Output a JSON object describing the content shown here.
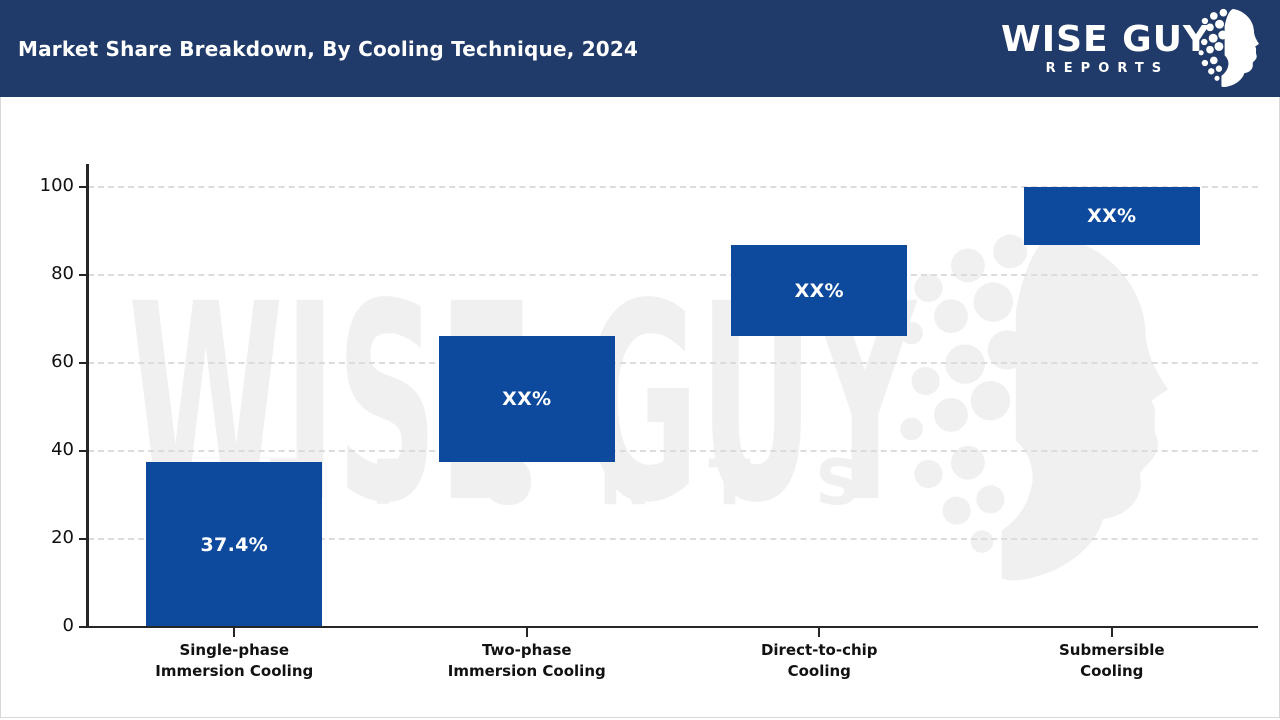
{
  "header": {
    "title": "Market Share Breakdown, By Cooling Technique, 2024",
    "logo": {
      "primary": "WISE GUY",
      "secondary": "REPORTS"
    },
    "bg_color": "#203a69"
  },
  "watermark": {
    "primary": "WISE GUY",
    "secondary": "REPORTS",
    "color": "#f0f0f0"
  },
  "chart_data": {
    "type": "bar",
    "variant": "waterfall",
    "title": "Market Share Breakdown, By Cooling Technique, 2024",
    "xlabel": "",
    "ylabel": "",
    "ylim": [
      0,
      100
    ],
    "yticks": [
      0,
      20,
      40,
      60,
      80,
      100
    ],
    "grid": "horizontal-dashed",
    "legend": "none",
    "bar_color": "#0d4a9e",
    "bar_label_color": "#ffffff",
    "axis_color": "#262626",
    "categories": [
      [
        "Single-phase",
        "Immersion Cooling"
      ],
      [
        "Two-phase",
        "Immersion Cooling"
      ],
      [
        "Direct-to-chip",
        "Cooling"
      ],
      [
        "Submersible",
        "Cooling"
      ]
    ],
    "segments": [
      {
        "category": "Single-phase Immersion Cooling",
        "start": 0,
        "end": 37.4,
        "label": "37.4%"
      },
      {
        "category": "Two-phase Immersion Cooling",
        "start": 37.4,
        "end": 66.1,
        "label": "XX%"
      },
      {
        "category": "Direct-to-chip Cooling",
        "start": 66.1,
        "end": 86.8,
        "label": "XX%"
      },
      {
        "category": "Submersible Cooling",
        "start": 86.8,
        "end": 100,
        "label": "XX%"
      }
    ]
  }
}
